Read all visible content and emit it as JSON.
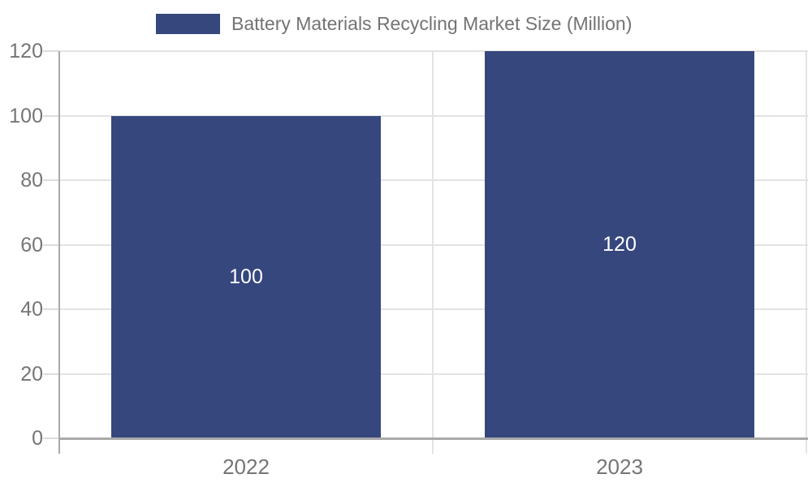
{
  "chart_data": {
    "type": "bar",
    "title": "Battery Materials Recycling Market Size (Million)",
    "categories": [
      "2022",
      "2023"
    ],
    "series": [
      {
        "name": "Battery Materials Recycling Market Size (Million)",
        "values": [
          100,
          120
        ]
      }
    ],
    "bar_value_labels": [
      "100",
      "120"
    ],
    "xlabel": "",
    "ylabel": "",
    "ylim": [
      0,
      120
    ],
    "ytick_step": 20,
    "yticks": [
      0,
      20,
      40,
      60,
      80,
      100,
      120
    ],
    "grid": true,
    "legend_position": "top-center",
    "colors": {
      "bar": "#36477E",
      "bar_label": "#FFFFFF",
      "axis_line": "#A9A9A9",
      "grid_line": "#E3E3E3",
      "tick_mark": "#DCDCDC",
      "tick_label": "#757575",
      "legend_text": "#737373"
    }
  }
}
